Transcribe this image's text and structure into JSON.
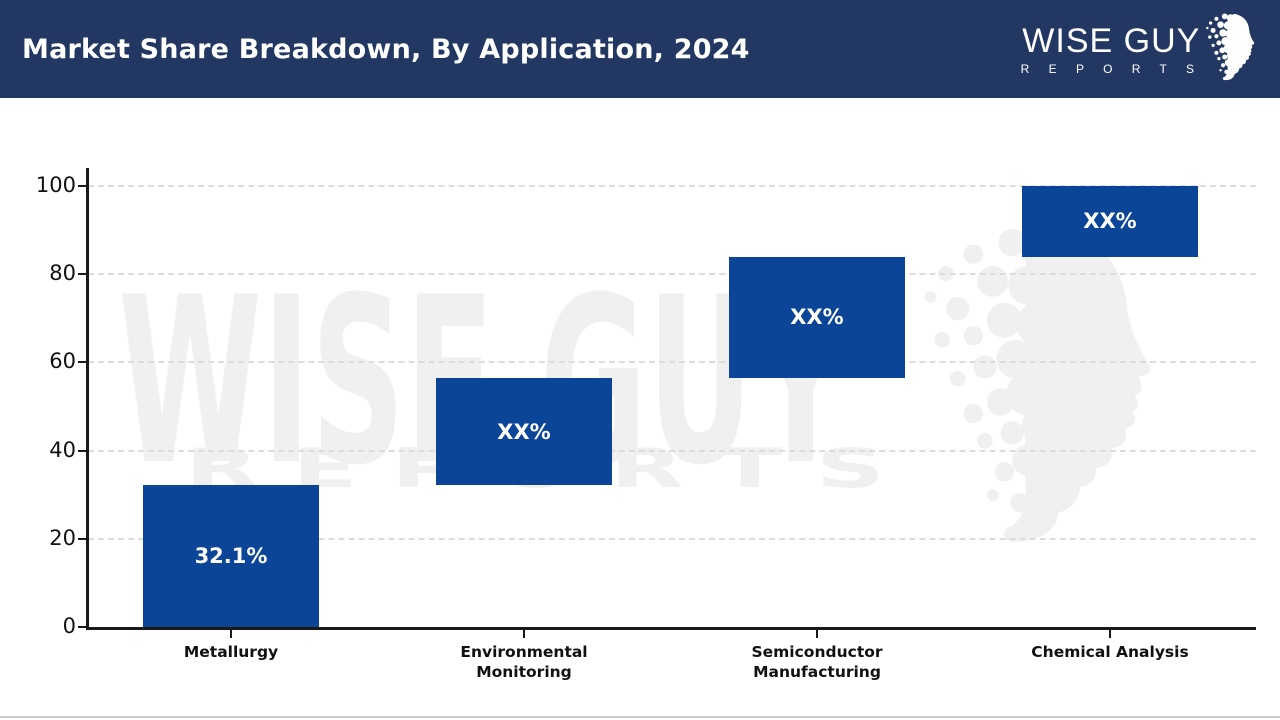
{
  "header": {
    "title": "Market Share Breakdown, By Application, 2024",
    "logo": {
      "line1": "WISE GUY",
      "line2": "R E P O R T S"
    }
  },
  "watermark": {
    "line1": "WISE GUY",
    "line2": "R E P O R T S"
  },
  "colors": {
    "header_bg": "#223862",
    "bar": "#0b4597",
    "grid": "#dcdcdc",
    "axis": "#1a1a1a",
    "bar_label_text": "#ffffff",
    "tick_text": "#111111",
    "watermark": "#f0f0f1"
  },
  "chart_data": {
    "type": "bar",
    "subtype": "floating-waterfall",
    "title": "Market Share Breakdown, By Application, 2024",
    "categories": [
      "Metallurgy",
      "Environmental\nMonitoring",
      "Semiconductor\nManufacturing",
      "Chemical Analysis"
    ],
    "series": [
      {
        "name": "Market Share",
        "segments": [
          {
            "start": 0,
            "end": 32.1,
            "label": "32.1%"
          },
          {
            "start": 32.1,
            "end": 56.5,
            "label": "XX%"
          },
          {
            "start": 56.5,
            "end": 84,
            "label": "XX%"
          },
          {
            "start": 84,
            "end": 100,
            "label": "XX%"
          }
        ]
      }
    ],
    "yticks": [
      0,
      20,
      40,
      60,
      80,
      100
    ],
    "ylim": [
      0,
      105
    ],
    "xlabel": "",
    "ylabel": "",
    "grid": "horizontal-dashed",
    "legend": "none"
  }
}
